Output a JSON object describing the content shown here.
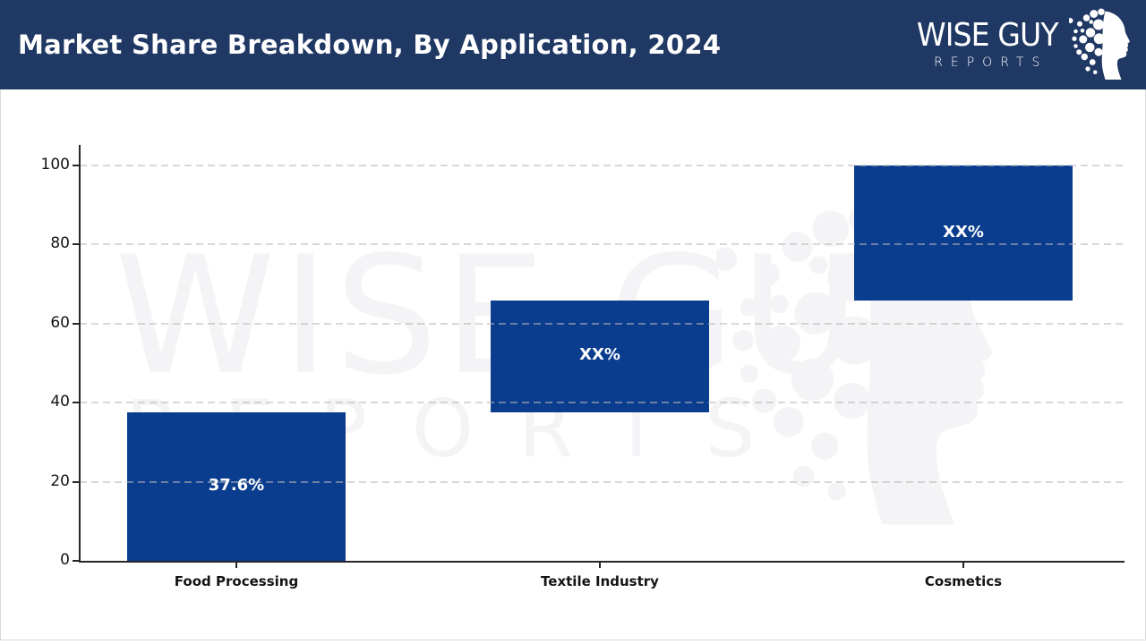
{
  "header": {
    "title": "Market Share Breakdown, By Application, 2024",
    "logo": {
      "wordmark": "WISE GUY",
      "subtext": "REPORTS",
      "icon": "head-profile-dots-icon"
    }
  },
  "watermark": {
    "wordmark": "WISE GUY",
    "subtext": "REPORTS",
    "icon": "head-profile-dots-icon"
  },
  "colors": {
    "header_background": "#1f3864",
    "bar_fill": "#0b3d8f",
    "bar_label_text": "#ffffff",
    "gridline": "#d4d4d4",
    "axis": "#262626",
    "watermark": "#f4f4f6",
    "page_border": "#d9d9d9"
  },
  "chart_data": {
    "type": "bar",
    "subtype": "waterfall",
    "title": "Market Share Breakdown, By Application, 2024",
    "categories": [
      "Food Processing",
      "Textile Industry",
      "Cosmetics"
    ],
    "series": [
      {
        "name": "Market Share (%)",
        "segments": [
          {
            "category": "Food Processing",
            "start": 0,
            "end": 37.6,
            "label": "37.6%"
          },
          {
            "category": "Textile Industry",
            "start": 37.6,
            "end": 65.8,
            "label": "XX%"
          },
          {
            "category": "Cosmetics",
            "start": 65.8,
            "end": 100,
            "label": "XX%"
          }
        ]
      }
    ],
    "xlabel": "",
    "ylabel": "",
    "ylim": [
      0,
      105
    ],
    "yticks": [
      0,
      20,
      40,
      60,
      80,
      100
    ],
    "grid": "horizontal dashed, drawn above bars",
    "legend": "none",
    "bar_color": "#0b3d8f"
  }
}
